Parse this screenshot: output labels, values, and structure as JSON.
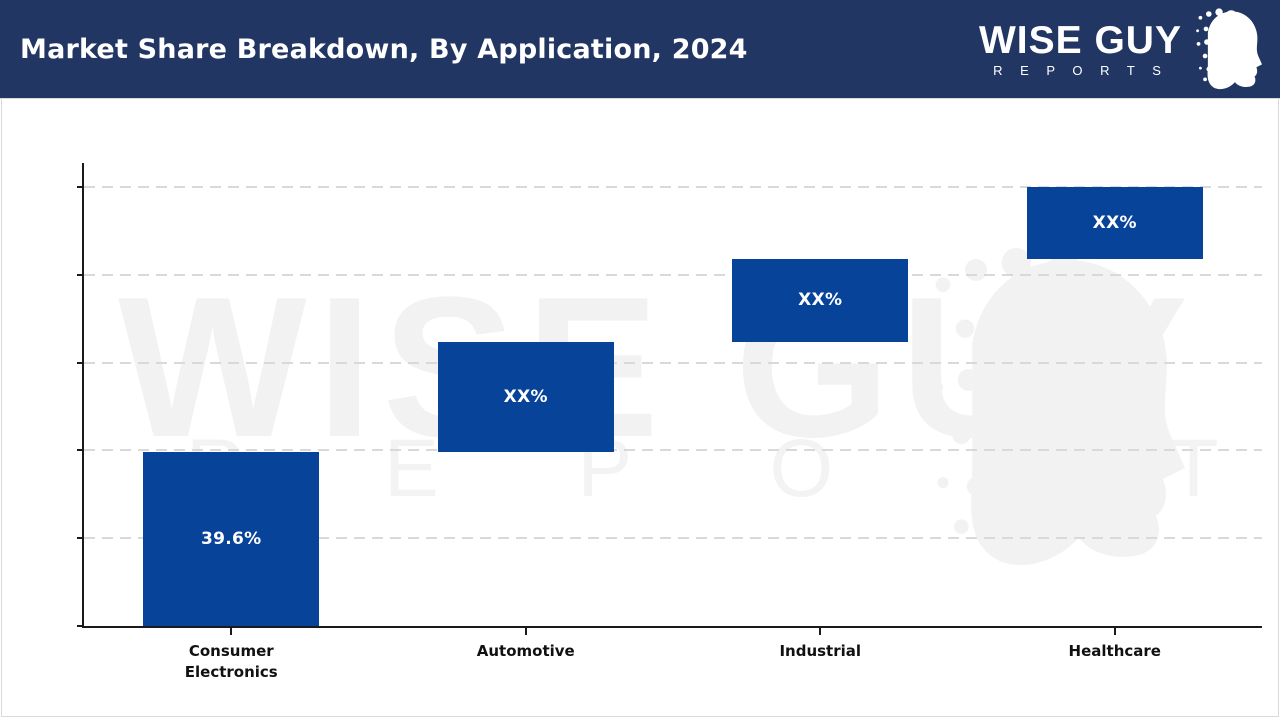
{
  "header": {
    "title": "Market Share Breakdown, By Application, 2024",
    "bg_color": "#223663",
    "logo": {
      "line1": "WISE GUY",
      "line2": "R E P O R T S"
    }
  },
  "watermark": {
    "line1": "WISE GUY",
    "line2": "R E P O R T S"
  },
  "chart_data": {
    "type": "bar",
    "subtype": "floating-waterfall",
    "title": "Market Share Breakdown, By Application, 2024",
    "xlabel": "",
    "ylabel": "",
    "ylim": [
      0,
      100
    ],
    "yticks": [
      0,
      20,
      40,
      60,
      80,
      100
    ],
    "grid": "horizontal-dashed",
    "legend": "none",
    "bar_color": "#08439a",
    "bar_label_color": "#ffffff",
    "categories": [
      "Consumer Electronics",
      "Automotive",
      "Industrial",
      "Healthcare"
    ],
    "segments": [
      {
        "category": "Consumer Electronics",
        "start": 0,
        "end": 39.6,
        "label": "39.6%"
      },
      {
        "category": "Automotive",
        "start": 39.6,
        "end": 64.7,
        "label": "XX%"
      },
      {
        "category": "Industrial",
        "start": 64.7,
        "end": 83.6,
        "label": "XX%"
      },
      {
        "category": "Healthcare",
        "start": 83.6,
        "end": 100,
        "label": "XX%"
      }
    ]
  }
}
